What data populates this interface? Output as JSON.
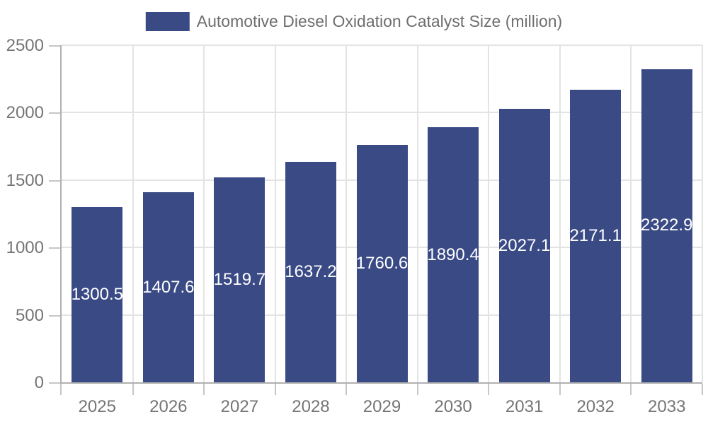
{
  "chart_data": {
    "type": "bar",
    "title": "",
    "legend": {
      "label": "Automotive Diesel Oxidation Catalyst Size (million)",
      "position": "top"
    },
    "categories": [
      "2025",
      "2026",
      "2027",
      "2028",
      "2029",
      "2030",
      "2031",
      "2032",
      "2033"
    ],
    "values": [
      1300.5,
      1407.6,
      1519.7,
      1637.2,
      1760.6,
      1890.4,
      2027.1,
      2171.1,
      2322.9
    ],
    "xlabel": "",
    "ylabel": "",
    "ylim": [
      0,
      2500
    ],
    "ytick_step": 500,
    "yticks": [
      0,
      500,
      1000,
      1500,
      2000,
      2500
    ],
    "grid": true,
    "colors": {
      "bar": "#3a4a85",
      "bar_label_text": "#ffffff",
      "tick_label_text": "#757575",
      "legend_text": "#6e6e6e",
      "gridline": "#e3e3e3",
      "axis": "#b0b0b0",
      "tick_mark": "#c6c6c6"
    }
  }
}
